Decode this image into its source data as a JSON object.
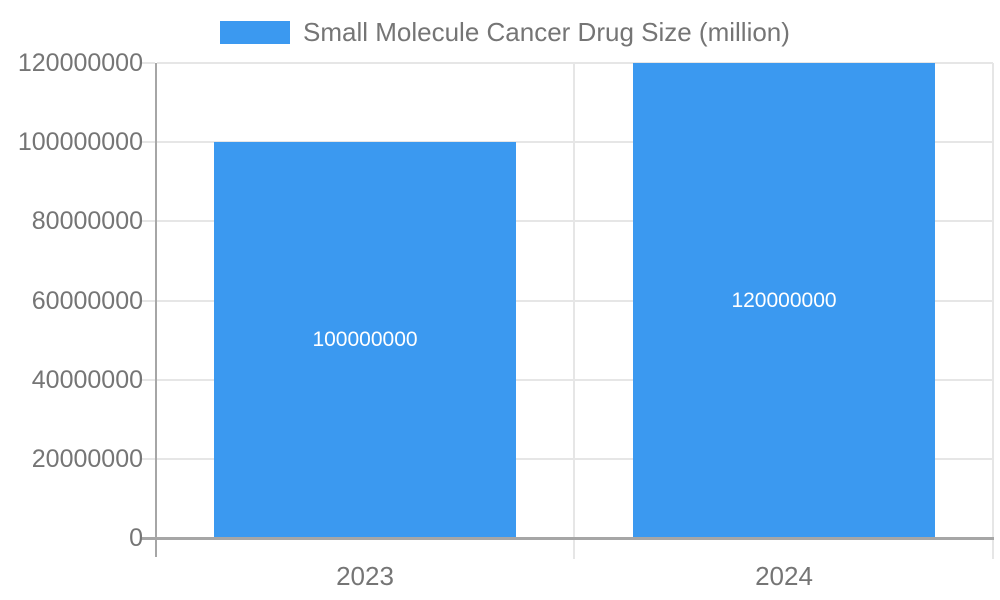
{
  "legend": {
    "label": "Small Molecule Cancer Drug Size (million)"
  },
  "colors": {
    "bar": "#3B99F0",
    "bar_label": "#ffffff",
    "gridline": "#e6e6e6",
    "axis_line": "#a6a6a6",
    "tick_label": "#757575",
    "legend_text": "#757575",
    "background": "#ffffff"
  },
  "chart_data": {
    "type": "bar",
    "title": "",
    "xlabel": "",
    "ylabel": "",
    "categories": [
      "2023",
      "2024"
    ],
    "series": [
      {
        "name": "Small Molecule Cancer Drug Size (million)",
        "values": [
          100000000,
          120000000
        ]
      }
    ],
    "bar_labels": [
      "100000000",
      "120000000"
    ],
    "ylim": [
      0,
      120000000
    ],
    "ytick_step": 20000000,
    "yticks": [
      0,
      20000000,
      40000000,
      60000000,
      80000000,
      100000000,
      120000000
    ],
    "grid": true,
    "legend_position": "top"
  }
}
